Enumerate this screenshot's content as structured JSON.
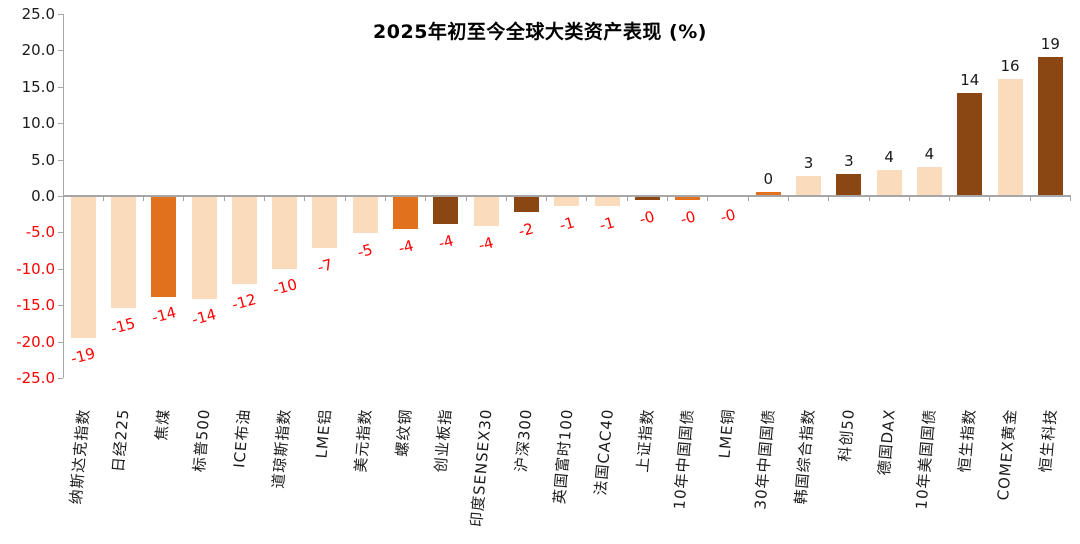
{
  "chart_data": {
    "type": "bar",
    "title": "2025年初至今全球大类资产表现 (%)",
    "ylim": [
      -25,
      25
    ],
    "y_tick_step": 5,
    "y_tick_labels": [
      "25.0",
      "20.0",
      "15.0",
      "10.0",
      "5.0",
      "0.0",
      "-5.0",
      "-10.0",
      "-15.0",
      "-20.0",
      "-25.0"
    ],
    "grid": false,
    "legend": "none",
    "categories": [
      "纳斯达克指数",
      "日经225",
      "焦煤",
      "标普500",
      "ICE布油",
      "道琼斯指数",
      "LME铝",
      "美元指数",
      "螺纹钢",
      "创业板指",
      "印度SENSEX30",
      "沪深300",
      "英国富时100",
      "法国CAC40",
      "上证指数",
      "10年中国国债",
      "LME铜",
      "30年中国国债",
      "韩国综合指数",
      "科创50",
      "德国DAX",
      "10年美国国债",
      "恒生指数",
      "COMEX黄金",
      "恒生科技"
    ],
    "value_labels": [
      "-19",
      "-15",
      "-14",
      "-14",
      "-12",
      "-10",
      "-7",
      "-5",
      "-4",
      "-4",
      "-4",
      "-2",
      "-1",
      "-1",
      "-0",
      "-0",
      "-0",
      "0",
      "3",
      "3",
      "4",
      "4",
      "14",
      "16",
      "19"
    ],
    "values": [
      -19.3,
      -15.2,
      -13.8,
      -14.0,
      -12.0,
      -9.9,
      -7.0,
      -5.0,
      -4.4,
      -3.7,
      -4.0,
      -2.0,
      -1.3,
      -1.2,
      -0.45,
      -0.35,
      -0.08,
      0.45,
      2.6,
      2.9,
      3.5,
      3.8,
      14.0,
      15.9,
      19.0
    ],
    "bar_color_keys": [
      "light",
      "light",
      "orange",
      "light",
      "light",
      "light",
      "light",
      "light",
      "orange",
      "brown",
      "light",
      "brown",
      "light",
      "light",
      "brown",
      "orange",
      "light",
      "orange",
      "light",
      "brown",
      "light",
      "light",
      "brown",
      "light",
      "brown"
    ],
    "palette": {
      "light": "#FADCBD",
      "orange": "#E1711D",
      "brown": "#8B4713"
    },
    "label_colors": {
      "negative": "#FF0000",
      "positive": "#1A1A1A"
    },
    "axis_color": "#A6A6A6"
  }
}
